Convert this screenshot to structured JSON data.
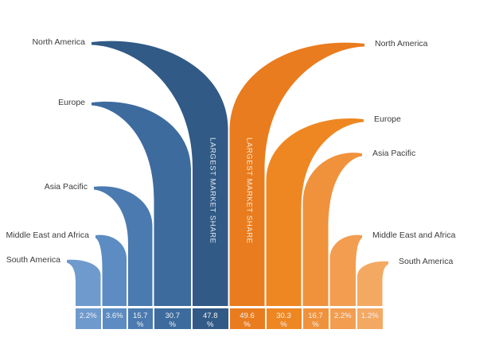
{
  "page": {
    "background": "#ffffff"
  },
  "chart_data": {
    "type": "bar",
    "subtype": "mirrored-swoosh-funnel",
    "title": "",
    "categories": [
      "North America",
      "Europe",
      "Asia Pacific",
      "Middle East and Africa",
      "South America"
    ],
    "series": [
      {
        "name": "left",
        "palette": "blue",
        "values": [
          47.8,
          30.7,
          15.7,
          3.6,
          2.2
        ],
        "value_labels": [
          "47.8\n%",
          "30.7\n%",
          "15.7\n%",
          "3.6%",
          "2.2%"
        ]
      },
      {
        "name": "right",
        "palette": "orange",
        "values": [
          49.6,
          30.3,
          16.7,
          2.2,
          1.2
        ],
        "value_labels": [
          "49.6\n%",
          "30.3\n%",
          "16.7\n%",
          "2.2%",
          "1.2%"
        ]
      }
    ],
    "center_labels": {
      "left": "LARGEST MARKET SHARE",
      "right": "LARGEST MARKET SHARE"
    },
    "colors": {
      "blue": [
        "#315a86",
        "#3d6b9e",
        "#4a7ab0",
        "#5c8cc2",
        "#6f9ace"
      ],
      "orange": [
        "#e97c1e",
        "#ee8722",
        "#f0923c",
        "#f29d50",
        "#f4a963"
      ],
      "region_label": "#3b3b3b",
      "value_text": "#f2f2f2",
      "center_text": "#e9edf2"
    },
    "grid": false,
    "legend_position": "none",
    "value_axis_range": [
      0,
      50
    ]
  }
}
